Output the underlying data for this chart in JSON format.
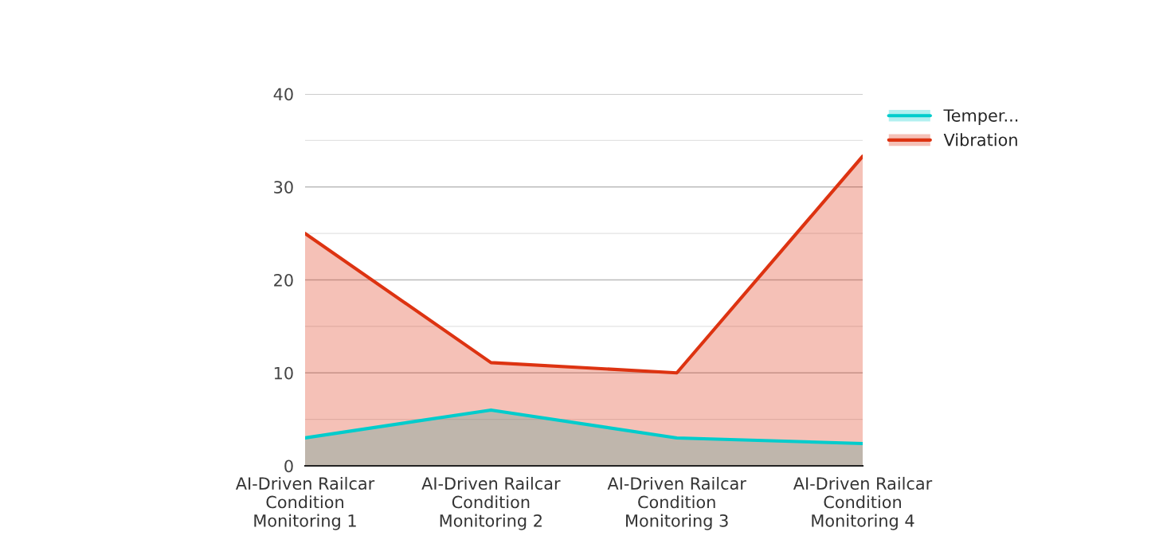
{
  "chart_data": {
    "type": "area",
    "categories": [
      "AI-Driven Railcar\nCondition\nMonitoring 1",
      "AI-Driven Railcar\nCondition\nMonitoring 2",
      "AI-Driven Railcar\nCondition\nMonitoring 3",
      "AI-Driven Railcar\nCondition\nMonitoring 4"
    ],
    "series": [
      {
        "name": "Temper...",
        "color": "#00cccc",
        "values": [
          3.0,
          6.0,
          3.0,
          2.4
        ]
      },
      {
        "name": "Vibration",
        "color": "#dd3311",
        "values": [
          25,
          11.1,
          10.0,
          33.3
        ]
      }
    ],
    "ylim": [
      0,
      40
    ],
    "yticks": [
      0,
      {
        "value": 5,
        "label": null
      },
      10,
      {
        "value": 15,
        "label": null
      },
      20,
      {
        "value": 25,
        "label": null
      },
      30,
      {
        "value": 35,
        "label": null
      },
      40
    ],
    "grid": "y",
    "legend": "top right"
  }
}
